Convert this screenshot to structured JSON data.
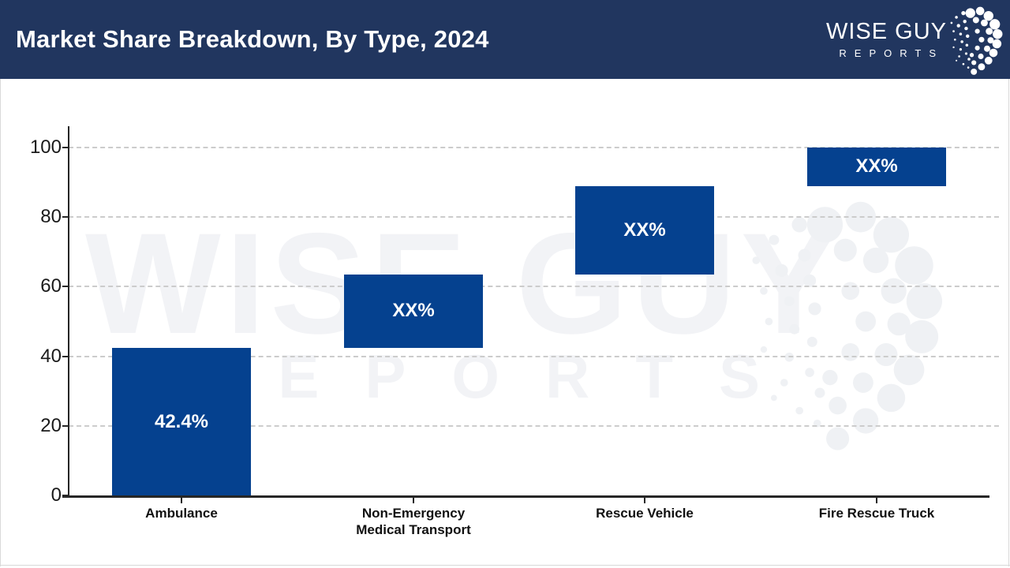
{
  "header": {
    "title": "Market Share Breakdown, By Type, 2024",
    "logo": {
      "name": "WISE GUY",
      "sub": "REPORTS"
    }
  },
  "watermark": {
    "line1": "WISE GUY",
    "line2": "REPORTS"
  },
  "chart_data": {
    "type": "bar",
    "variant": "floating-waterfall",
    "title": "Market Share Breakdown, By Type, 2024",
    "categories": [
      "Ambulance",
      "Non-Emergency\nMedical Transport",
      "Rescue Vehicle",
      "Fire Rescue Truck"
    ],
    "series": [
      {
        "name": "Market share (%)",
        "segments": [
          {
            "category": "Ambulance",
            "start": 0,
            "end": 42.4,
            "label": "42.4%"
          },
          {
            "category": "Non-Emergency Medical Transport",
            "start": 42.4,
            "end": 63.5,
            "label": "XX%"
          },
          {
            "category": "Rescue Vehicle",
            "start": 63.5,
            "end": 89,
            "label": "XX%"
          },
          {
            "category": "Fire Rescue Truck",
            "start": 89,
            "end": 100,
            "label": "XX%"
          }
        ]
      }
    ],
    "xlabel": "",
    "ylabel": "",
    "ylim": [
      0,
      105
    ],
    "yticks": [
      0,
      20,
      40,
      60,
      80,
      100
    ],
    "grid": "horizontal-dashed",
    "legend": "none",
    "colors": {
      "bar": "#05418f",
      "header_bg": "#21365f",
      "axis": "#262626",
      "gridline": "#cccccc",
      "watermark": "#f2f3f6",
      "border": "#d9d9d9",
      "bar_label": "#ffffff"
    }
  }
}
